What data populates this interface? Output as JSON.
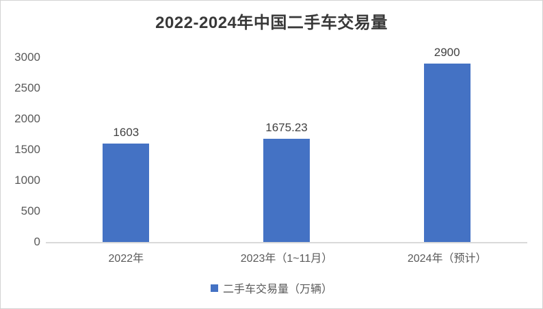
{
  "chart_data": {
    "type": "bar",
    "title": "2022-2024年中国二手车交易量",
    "categories": [
      "2022年",
      "2023年（1~11月）",
      "2024年（预计）"
    ],
    "values": [
      1603,
      1675.23,
      2900
    ],
    "data_labels": [
      "1603",
      "1675.23",
      "2900"
    ],
    "legend": [
      "二手车交易量（万辆）"
    ],
    "legend_position": "bottom",
    "xlabel": "",
    "ylabel": "",
    "ylim": [
      0,
      3000
    ],
    "yticks": [
      0,
      500,
      1000,
      1500,
      2000,
      2500,
      3000
    ],
    "grid": false,
    "style": {
      "bar_color": "#4472C4",
      "axis_line_color": "#d9d9d9",
      "title_color": "#383838",
      "tick_label_color": "#595959",
      "data_label_color": "#404040",
      "frame_border_color": "#d2d2d2",
      "background": "#ffffff"
    }
  }
}
